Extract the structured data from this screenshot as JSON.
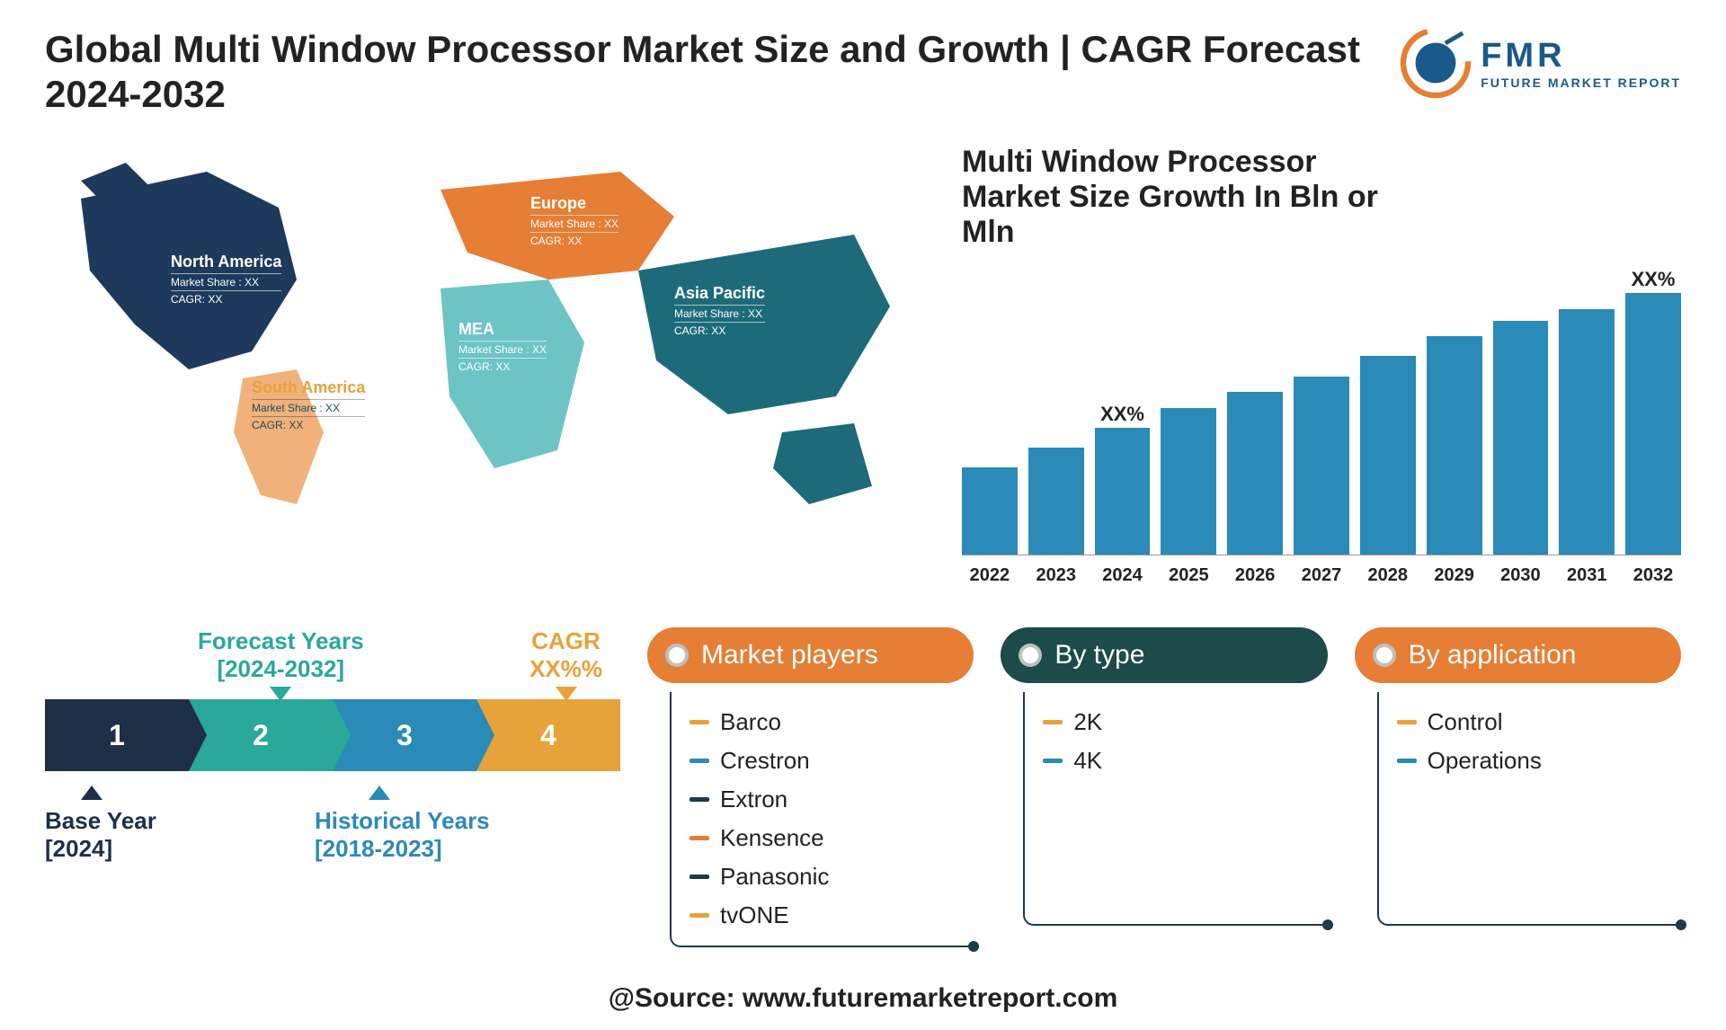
{
  "title": "Global Multi Window Processor Market Size and Growth | CAGR Forecast 2024-2032",
  "logo": {
    "main": "FMR",
    "sub": "FUTURE MARKET REPORT"
  },
  "source": "@Source: www.futuremarketreport.com",
  "map": {
    "regions": [
      {
        "name": "North America",
        "share": "Market Share : XX",
        "cagr": "CAGR: XX",
        "color": "#1d3a5c"
      },
      {
        "name": "South America",
        "share": "Market Share : XX",
        "cagr": "CAGR: XX",
        "color": "#f0b27a"
      },
      {
        "name": "Europe",
        "share": "Market Share : XX",
        "cagr": "CAGR: XX",
        "color": "#e67e35"
      },
      {
        "name": "MEA",
        "share": "Market Share : XX",
        "cagr": "CAGR: XX",
        "color": "#6cc4c4"
      },
      {
        "name": "Asia Pacific",
        "share": "Market Share : XX",
        "cagr": "CAGR: XX",
        "color": "#1d6b7a"
      }
    ]
  },
  "chart": {
    "title": "Multi Window Processor Market Size Growth In Bln or Mln",
    "type": "bar",
    "categories": [
      "2022",
      "2023",
      "2024",
      "2025",
      "2026",
      "2027",
      "2028",
      "2029",
      "2030",
      "2031",
      "2032"
    ],
    "values": [
      110,
      135,
      160,
      185,
      205,
      225,
      250,
      275,
      295,
      310,
      330
    ],
    "max": 340,
    "bar_color": "#2a8ab8",
    "annotations": [
      {
        "index": 2,
        "text": "XX%"
      },
      {
        "index": 10,
        "text": "XX%"
      }
    ],
    "label_fontsize": 20,
    "background": "#ffffff"
  },
  "timeline": {
    "segments": [
      {
        "num": "1",
        "color": "#1d3048"
      },
      {
        "num": "2",
        "color": "#2aa89a"
      },
      {
        "num": "3",
        "color": "#2a8ab8"
      },
      {
        "num": "4",
        "color": "#e8a23a"
      }
    ],
    "labels": {
      "base": {
        "text": "Base Year",
        "sub": "[2024]",
        "color": "#1d3048"
      },
      "forecast": {
        "text": "Forecast Years",
        "sub": "[2024-2032]",
        "color": "#2aa89a"
      },
      "historical": {
        "text": "Historical Years",
        "sub": "[2018-2023]",
        "color": "#2a8ab8"
      },
      "cagr": {
        "text": "CAGR",
        "sub": "XX%%",
        "color": "#e8a23a"
      }
    }
  },
  "columns": [
    {
      "title": "Market players",
      "pill_color": "#e67e35",
      "items": [
        {
          "text": "Barco",
          "tick": "#e8a23a"
        },
        {
          "text": "Crestron",
          "tick": "#2a8ab8"
        },
        {
          "text": "Extron",
          "tick": "#1d3a4a"
        },
        {
          "text": "Kensence",
          "tick": "#e67e35"
        },
        {
          "text": "Panasonic",
          "tick": "#1d3a4a"
        },
        {
          "text": "tvONE",
          "tick": "#e8a23a"
        }
      ]
    },
    {
      "title": "By type",
      "pill_color": "#1d4a4a",
      "items": [
        {
          "text": "2K",
          "tick": "#e8a23a"
        },
        {
          "text": "4K",
          "tick": "#2a8ab8"
        }
      ]
    },
    {
      "title": "By application",
      "pill_color": "#e67e35",
      "items": [
        {
          "text": "Control",
          "tick": "#e8a23a"
        },
        {
          "text": "Operations",
          "tick": "#2a8ab8"
        }
      ]
    }
  ]
}
